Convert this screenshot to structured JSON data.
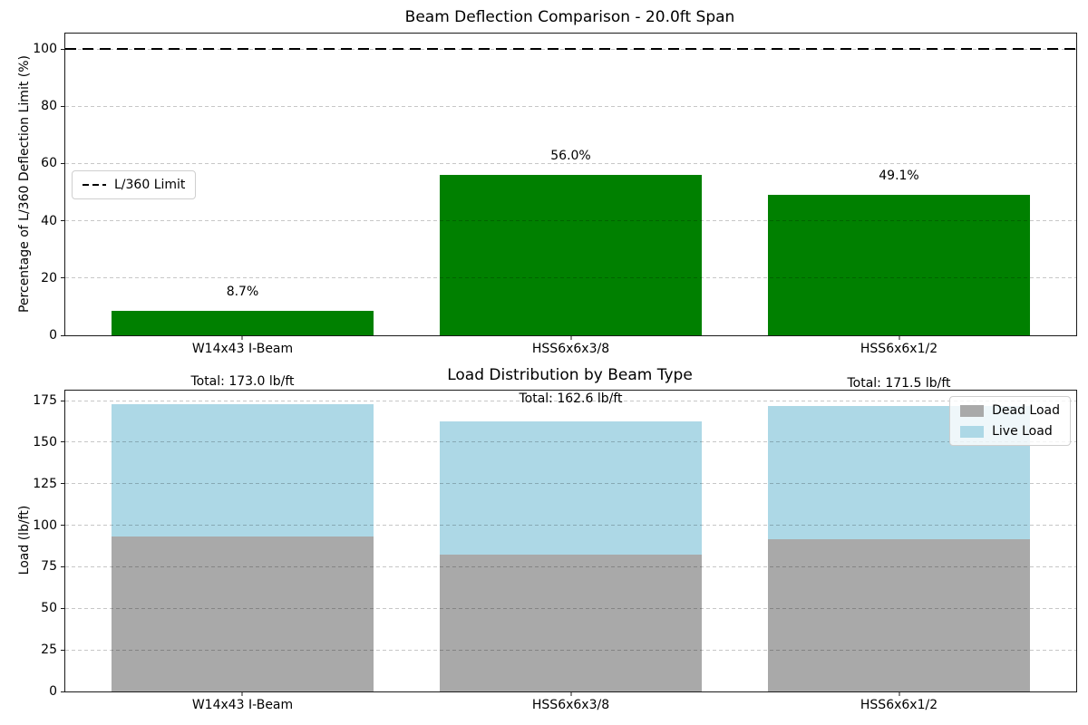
{
  "chart_data": [
    {
      "type": "bar",
      "title": "Beam Deflection Comparison - 20.0ft Span",
      "ylabel": "Percentage of L/360 Deflection Limit (%)",
      "xlabel": "",
      "categories": [
        "W14x43 I-Beam",
        "HSS6x6x3/8",
        "HSS6x6x1/2"
      ],
      "values": [
        8.7,
        56.0,
        49.1
      ],
      "value_labels": [
        "8.7%",
        "56.0%",
        "49.1%"
      ],
      "bar_color": "#008000",
      "yticks": [
        0,
        20,
        40,
        60,
        80,
        100
      ],
      "ylim": [
        0,
        105.4
      ],
      "grid": true,
      "reference_line": {
        "value": 100,
        "label": "L/360 Limit",
        "color": "#000000",
        "style": "dashed"
      },
      "legend": {
        "position": "center-left",
        "entries": [
          {
            "label": "L/360 Limit",
            "swatch": "dashed-line",
            "color": "#000000"
          }
        ]
      }
    },
    {
      "type": "stacked-bar",
      "title": "Load Distribution by Beam Type",
      "ylabel": "Load (lb/ft)",
      "xlabel": "",
      "categories": [
        "W14x43 I-Beam",
        "HSS6x6x3/8",
        "HSS6x6x1/2"
      ],
      "series": [
        {
          "name": "Dead Load",
          "color": "#a9a9a9",
          "values": [
            93.0,
            82.6,
            91.5
          ]
        },
        {
          "name": "Live Load",
          "color": "#add8e6",
          "values": [
            80.0,
            80.0,
            80.0
          ]
        }
      ],
      "totals": [
        173.0,
        162.6,
        171.5
      ],
      "total_labels": [
        "Total: 173.0 lb/ft",
        "Total: 162.6 lb/ft",
        "Total: 171.5 lb/ft"
      ],
      "yticks": [
        0,
        25,
        50,
        75,
        100,
        125,
        150,
        175
      ],
      "ylim": [
        0,
        181
      ],
      "grid": true,
      "legend": {
        "position": "top-right",
        "entries": [
          {
            "label": "Dead Load",
            "swatch": "box",
            "color": "#a9a9a9"
          },
          {
            "label": "Live Load",
            "swatch": "box",
            "color": "#add8e6"
          }
        ]
      }
    }
  ]
}
